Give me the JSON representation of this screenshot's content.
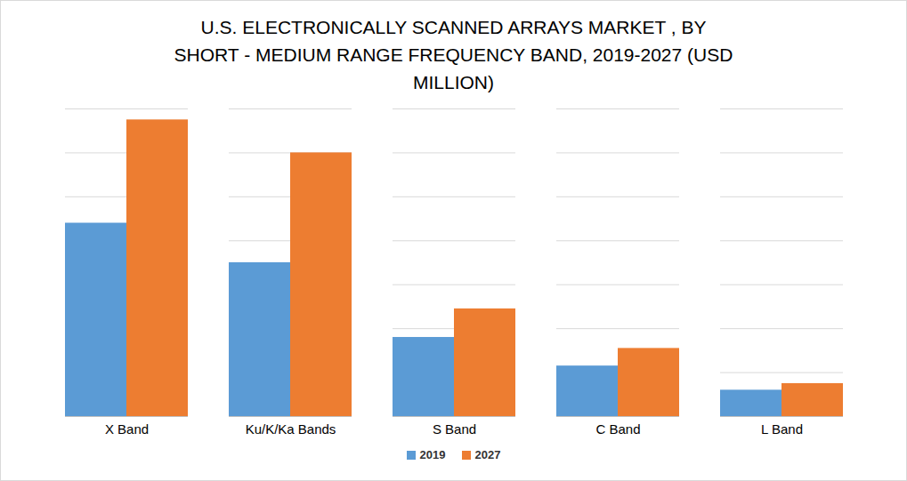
{
  "chart_data": {
    "type": "bar",
    "title": "U.S. ELECTRONICALLY SCANNED ARRAYS MARKET , BY SHORT - MEDIUM RANGE FREQUENCY BAND, 2019-2027 (USD MILLION)",
    "categories": [
      "X Band",
      "Ku/K/Ka Bands",
      "S Band",
      "C Band",
      "L Band"
    ],
    "series": [
      {
        "name": "2019",
        "color": "#5b9bd5",
        "values": [
          4.4,
          3.5,
          1.8,
          1.15,
          0.6
        ]
      },
      {
        "name": "2027",
        "color": "#ed7d31",
        "values": [
          6.75,
          6.0,
          2.45,
          1.55,
          0.75
        ]
      }
    ],
    "ylim": [
      0,
      7
    ],
    "yticks": [
      0,
      1,
      2,
      3,
      4,
      5,
      6,
      7
    ],
    "grid": true,
    "tick_labels": "x",
    "legend": "bottom"
  }
}
